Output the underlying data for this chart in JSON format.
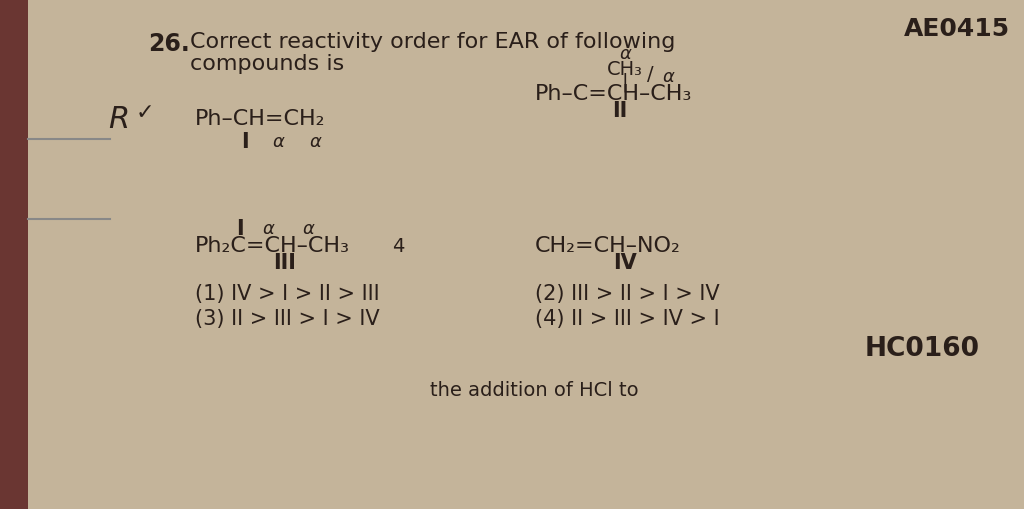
{
  "background_color": "#c4b49a",
  "text_color": "#2a1f1a",
  "figsize": [
    10.24,
    5.09
  ],
  "dpi": 100,
  "header": "AE0415",
  "q_num": "26.",
  "q_line1": "Correct reactivity order for EAR of following",
  "q_line2": "compounds is",
  "compound_I": "Ph–CH=CH₂",
  "compound_II_main": "Ph–C=CH–CH₃",
  "compound_II_ch3": "CH₃",
  "compound_III": "Ph₂C=CH–CH₃",
  "compound_IV": "CH₂=CH–NO₂",
  "label_I": "I",
  "label_II": "II",
  "label_III": "III",
  "label_IV": "IV",
  "alpha": "α",
  "option1": "(1) IV > I > II > III",
  "option2": "(2) III > II > I > IV",
  "option3": "(3) II > III > I > IV",
  "option4": "(4) II > III > IV > I",
  "footer": "HC0160",
  "bottom_text": "the addition of HCl to"
}
